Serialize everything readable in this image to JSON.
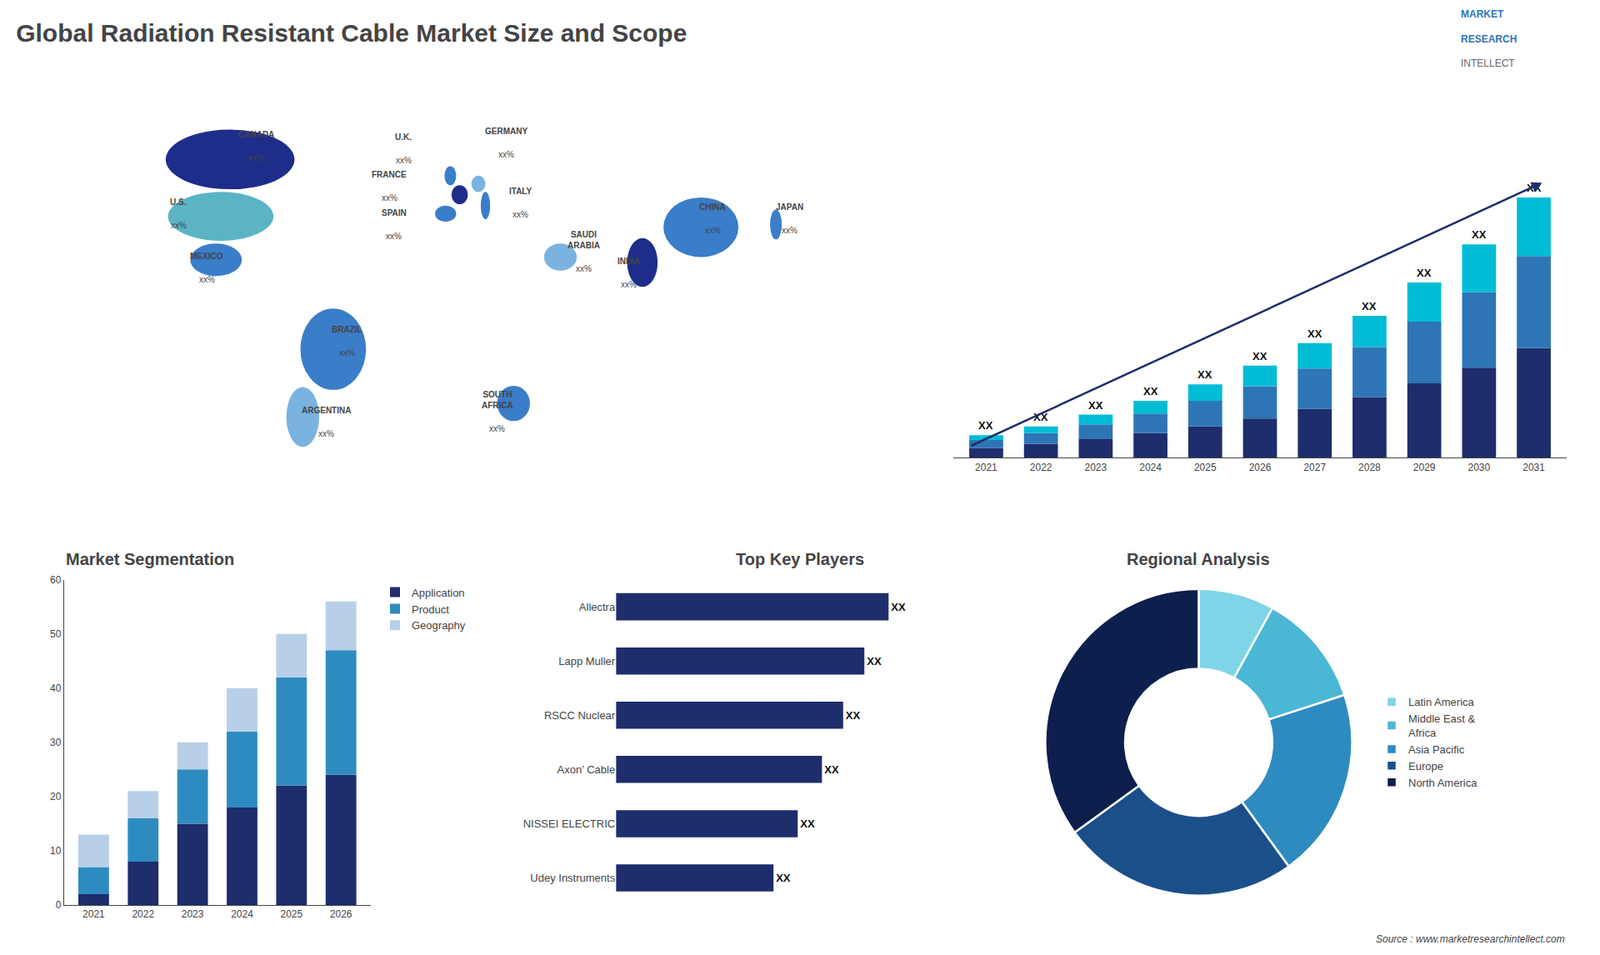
{
  "title": "Global Radiation Resistant Cable Market Size and Scope",
  "annotations": [
    {
      "text": "MARKET",
      "color": "#2e75b6"
    },
    {
      "text": "RESEARCH",
      "color": "#2e75b6"
    },
    {
      "text": "INTELLECT",
      "color": "#666666"
    },
    {
      "text": "Source : www.marketresearchintellect.com"
    }
  ],
  "chart_data": [
    {
      "type": "map",
      "categories": [
        "CANADA",
        "U.S.",
        "MEXICO",
        "BRAZIL",
        "ARGENTINA",
        "U.K.",
        "FRANCE",
        "SPAIN",
        "GERMANY",
        "ITALY",
        "SAUDI\nARABIA",
        "SOUTH\nAFRICA",
        "CHINA",
        "INDIA",
        "JAPAN"
      ],
      "value_labels": [
        "xx%",
        "xx%",
        "xx%",
        "xx%",
        "xx%",
        "xx%",
        "xx%",
        "xx%",
        "xx%",
        "xx%",
        "xx%",
        "xx%",
        "xx%",
        "xx%",
        "xx%"
      ],
      "colors": [
        "#1e2d8a",
        "#5ab4c4",
        "#3a7dc9",
        "#3a7dc9",
        "#7ab3e0",
        "#3a7dc9",
        "#1e2d8a",
        "#3a7dc9",
        "#7ab3e0",
        "#3a7dc9",
        "#7ab3e0",
        "#3a7dc9",
        "#3a7dc9",
        "#1e2d8a",
        "#3a7dc9"
      ]
    },
    {
      "type": "bar",
      "stacked": true,
      "categories": [
        "2021",
        "2022",
        "2023",
        "2024",
        "2025",
        "2026",
        "2027",
        "2028",
        "2029",
        "2030",
        "2031"
      ],
      "series": [
        {
          "color": "#1e2d6b",
          "values": [
            1.0,
            1.4,
            1.9,
            2.5,
            3.2,
            4.0,
            5.0,
            6.2,
            7.6,
            9.2,
            11.2
          ]
        },
        {
          "color": "#2e75b6",
          "values": [
            0.8,
            1.1,
            1.5,
            2.0,
            2.6,
            3.3,
            4.1,
            5.1,
            6.3,
            7.7,
            9.4
          ]
        },
        {
          "color": "#00bcd4",
          "values": [
            0.5,
            0.7,
            1.0,
            1.3,
            1.7,
            2.1,
            2.6,
            3.2,
            4.0,
            4.9,
            6.0
          ],
          "value_labels": [
            "XX",
            "XX",
            "XX",
            "XX",
            "XX",
            "XX",
            "XX",
            "XX",
            "XX",
            "XX",
            "XX"
          ]
        }
      ],
      "ylim": [
        0,
        33.25
      ],
      "tick_labels": "x",
      "grid": false
    },
    {
      "type": "bar",
      "stacked": true,
      "title": "Market Segmentation",
      "categories": [
        "2021",
        "2022",
        "2023",
        "2024",
        "2025",
        "2026"
      ],
      "series": [
        {
          "name": "Application",
          "color": "#1e2d6b",
          "values": [
            2,
            8,
            15,
            18,
            22,
            24
          ]
        },
        {
          "name": "Product",
          "color": "#2e8bc0",
          "values": [
            5,
            8,
            10,
            14,
            20,
            23
          ]
        },
        {
          "name": "Geography",
          "color": "#b8cfe8",
          "values": [
            6,
            5,
            5,
            8,
            8,
            9
          ]
        }
      ],
      "ylim": [
        0,
        60
      ],
      "yticks": [
        0,
        10,
        20,
        30,
        40,
        50,
        60
      ],
      "grid": false,
      "legend": "upper right"
    },
    {
      "type": "bar",
      "orientation": "horizontal",
      "title": "Top Key Players",
      "categories": [
        "Allectra",
        "Lapp Muller",
        "RSCC Nuclear",
        "Axon’ Cable",
        "NISSEI ELECTRIC",
        "Udey Instruments"
      ],
      "values": [
        9.0,
        8.2,
        7.5,
        6.8,
        6.0,
        5.2
      ],
      "value_labels": [
        "XX",
        "XX",
        "XX",
        "XX",
        "XX",
        "XX"
      ],
      "color": "#1e2d6b",
      "xlim": [
        0,
        12.15
      ],
      "tick_labels": "y",
      "grid": false
    },
    {
      "type": "donut",
      "title": "Regional Analysis",
      "categories": [
        "Latin America",
        "Middle East &\nAfrica",
        "Asia Pacific",
        "Europe",
        "North America"
      ],
      "values": [
        8,
        12,
        20,
        25,
        35
      ],
      "colors": [
        "#7fd4e8",
        "#4ab8d4",
        "#2e8bbf",
        "#1a4f8a",
        "#0d1f4c"
      ],
      "legend": "right"
    }
  ]
}
